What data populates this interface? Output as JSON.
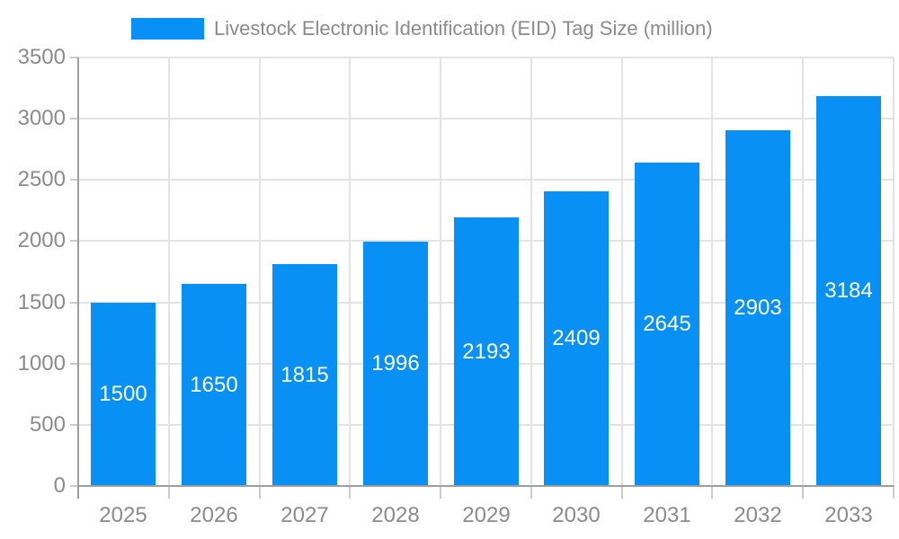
{
  "legend": {
    "label": "Livestock Electronic Identification (EID) Tag Size (million)"
  },
  "chart_data": {
    "type": "bar",
    "title": "Livestock Electronic Identification (EID) Tag Size (million)",
    "categories": [
      "2025",
      "2026",
      "2027",
      "2028",
      "2029",
      "2030",
      "2031",
      "2032",
      "2033"
    ],
    "values": [
      1500,
      1650,
      1815,
      1996,
      2193,
      2409,
      2645,
      2903,
      3184
    ],
    "series_name": "Livestock Electronic Identification (EID) Tag Size (million)",
    "xlabel": "",
    "ylabel": "",
    "ylim": [
      0,
      3500
    ],
    "yticks": [
      0,
      500,
      1000,
      1500,
      2000,
      2500,
      3000,
      3500
    ],
    "grid": true,
    "legend_position": "top",
    "value_labels": "inside-center"
  },
  "colors": {
    "bar": "#0990f5",
    "grid": "#e3e3e3",
    "tick": "#cccccc",
    "axis": "#9e9e9e",
    "text": "#8b8b8b",
    "value_label": "#ffffff",
    "background": "#ffffff"
  }
}
